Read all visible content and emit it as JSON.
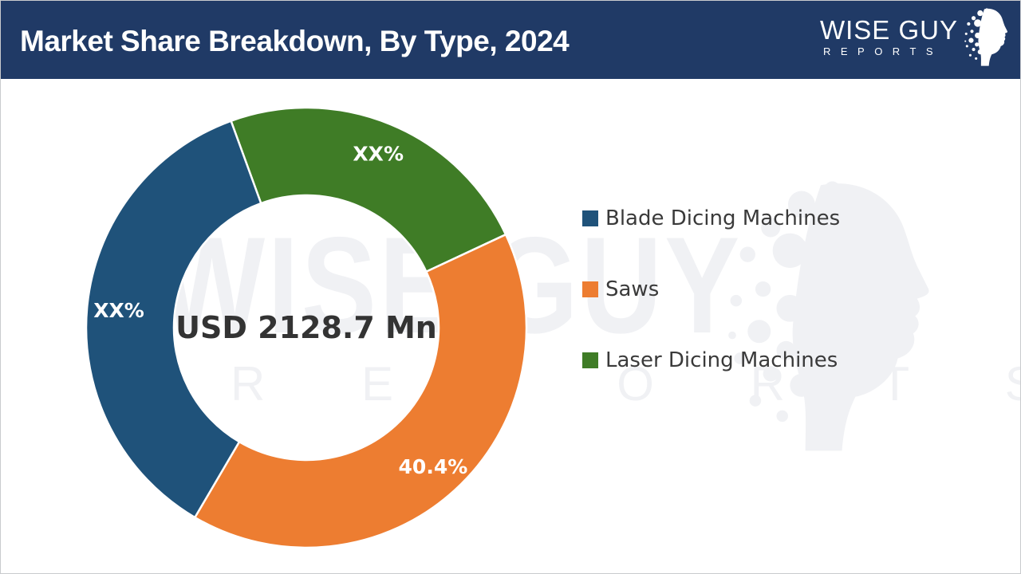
{
  "header": {
    "title": "Market Share Breakdown, By Type, 2024",
    "logo": {
      "line1": "WISE GUY",
      "line2": "REPORTS"
    }
  },
  "watermark": {
    "line1": "WISE GUY",
    "line2": "R E P O R T S"
  },
  "colors": {
    "header_bg": "#203a66",
    "blue": "#1f527a",
    "orange": "#ed7d31",
    "green": "#3f7c26",
    "legend_text": "#3a3a3a",
    "center_text": "#333333",
    "slice_label_text": "#ffffff",
    "watermark": "#f0f1f4"
  },
  "chart_data": {
    "type": "pie",
    "subtype": "donut",
    "title": "Market Share Breakdown, By Type, 2024",
    "center_label": "USD 2128.7 Mn",
    "start_angle_deg": -20,
    "direction": "clockwise",
    "outer_radius": 276,
    "inner_radius": 166,
    "label_radius": 236,
    "segments": [
      {
        "label": "Laser Dicing Machines",
        "value_pct": 23.6,
        "value_display": "XX%",
        "color": "#3f7c26"
      },
      {
        "label": "Saws",
        "value_pct": 40.4,
        "value_display": "40.4%",
        "color": "#ed7d31"
      },
      {
        "label": "Blade Dicing Machines",
        "value_pct": 36.0,
        "value_display": "XX%",
        "color": "#1f527a"
      }
    ],
    "legend_position": "right"
  },
  "legend": {
    "items": [
      {
        "label": "Blade Dicing Machines",
        "color": "#1f527a"
      },
      {
        "label": "Saws",
        "color": "#ed7d31"
      },
      {
        "label": "Laser Dicing Machines",
        "color": "#3f7c26"
      }
    ]
  }
}
